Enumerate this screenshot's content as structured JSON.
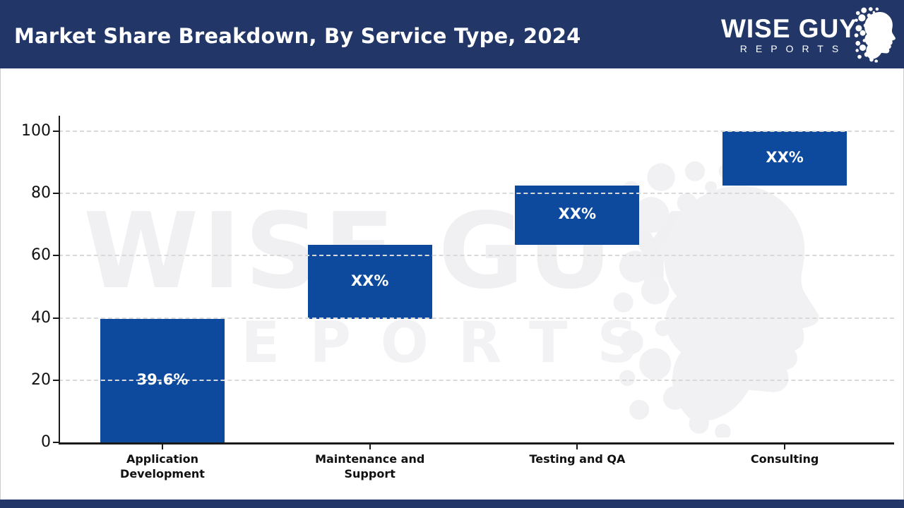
{
  "header": {
    "title": "Market Share Breakdown, By Service Type, 2024",
    "bg_color": "#223768",
    "logo": {
      "line1": "WISE GUY",
      "line2": "REPORTS"
    }
  },
  "watermark": {
    "line1": "WISE GUY",
    "line2": "REPORTS"
  },
  "footer": {
    "bg_color": "#223768"
  },
  "chart_data": {
    "type": "bar",
    "subtype": "waterfall",
    "title": "Market Share Breakdown, By Service Type, 2024",
    "categories": [
      "Application Development",
      "Maintenance and Support",
      "Testing and QA",
      "Consulting"
    ],
    "bars": [
      {
        "category": "Application Development",
        "start": 0,
        "end": 39.6,
        "label": "39.6%"
      },
      {
        "category": "Maintenance and Support",
        "start": 39.6,
        "end": 63.5,
        "label": "XX%"
      },
      {
        "category": "Testing and QA",
        "start": 63.5,
        "end": 82.5,
        "label": "XX%"
      },
      {
        "category": "Consulting",
        "start": 82.5,
        "end": 100,
        "label": "XX%"
      }
    ],
    "tick_label_lines": [
      [
        "Application",
        "Development"
      ],
      [
        "Maintenance and",
        "Support"
      ],
      [
        "Testing and QA"
      ],
      [
        "Consulting"
      ]
    ],
    "xlabel": "",
    "ylabel": "",
    "ylim": [
      0,
      104
    ],
    "yticks": [
      0,
      20,
      40,
      60,
      80,
      100
    ],
    "grid": "horizontal-dashed",
    "legend": "none",
    "bar_color": "#0d4a9e",
    "grid_color": "#d9d9d9",
    "axis_color": "#1a1a1a"
  }
}
